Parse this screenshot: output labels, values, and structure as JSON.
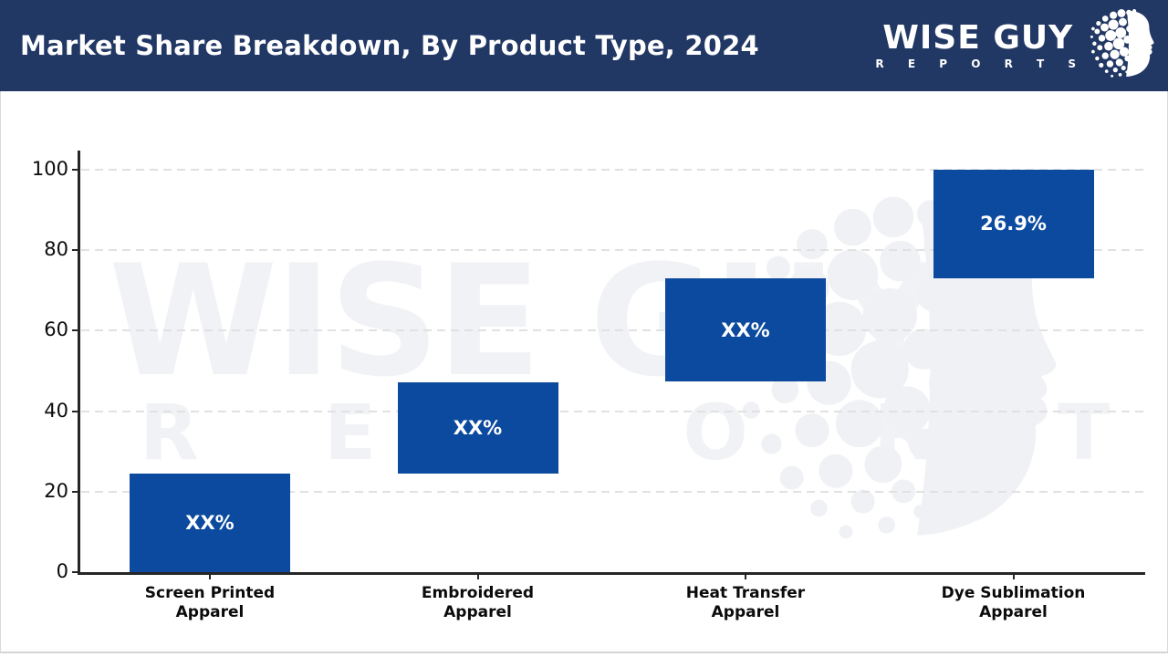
{
  "header": {
    "title": "Market Share Breakdown, By Product Type, 2024",
    "logo": {
      "name": "WISE GUY",
      "sub": "R E P O R T S"
    }
  },
  "watermark": {
    "big_text": "WISE GUY",
    "sub_text": "R E P O R T S"
  },
  "chart_data": {
    "type": "bar",
    "variant": "waterfall-stacked-breakdown",
    "title": "Market Share Breakdown, By Product Type, 2024",
    "xlabel": "",
    "ylabel": "",
    "ylim": [
      0,
      105
    ],
    "yticks": [
      0,
      20,
      40,
      60,
      80,
      100
    ],
    "grid": "horizontal dashed",
    "legend": "none",
    "bar_color": "#0B4A9E",
    "bar_label_color": "#ffffff",
    "categories": [
      "Screen Printed Apparel",
      "Embroidered Apparel",
      "Heat Transfer Apparel",
      "Dye Sublimation Apparel"
    ],
    "category_lines": [
      [
        "Screen Printed",
        "Apparel"
      ],
      [
        "Embroidered",
        "Apparel"
      ],
      [
        "Heat Transfer",
        "Apparel"
      ],
      [
        "Dye Sublimation",
        "Apparel"
      ]
    ],
    "segments": [
      {
        "category": "Screen Printed Apparel",
        "start": 0,
        "end": 24.5,
        "label": "XX%"
      },
      {
        "category": "Embroidered Apparel",
        "start": 24.5,
        "end": 47.2,
        "label": "XX%"
      },
      {
        "category": "Heat Transfer Apparel",
        "start": 47.4,
        "end": 73.0,
        "label": "XX%"
      },
      {
        "category": "Dye Sublimation Apparel",
        "start": 73.1,
        "end": 100,
        "label": "26.9%"
      }
    ]
  }
}
